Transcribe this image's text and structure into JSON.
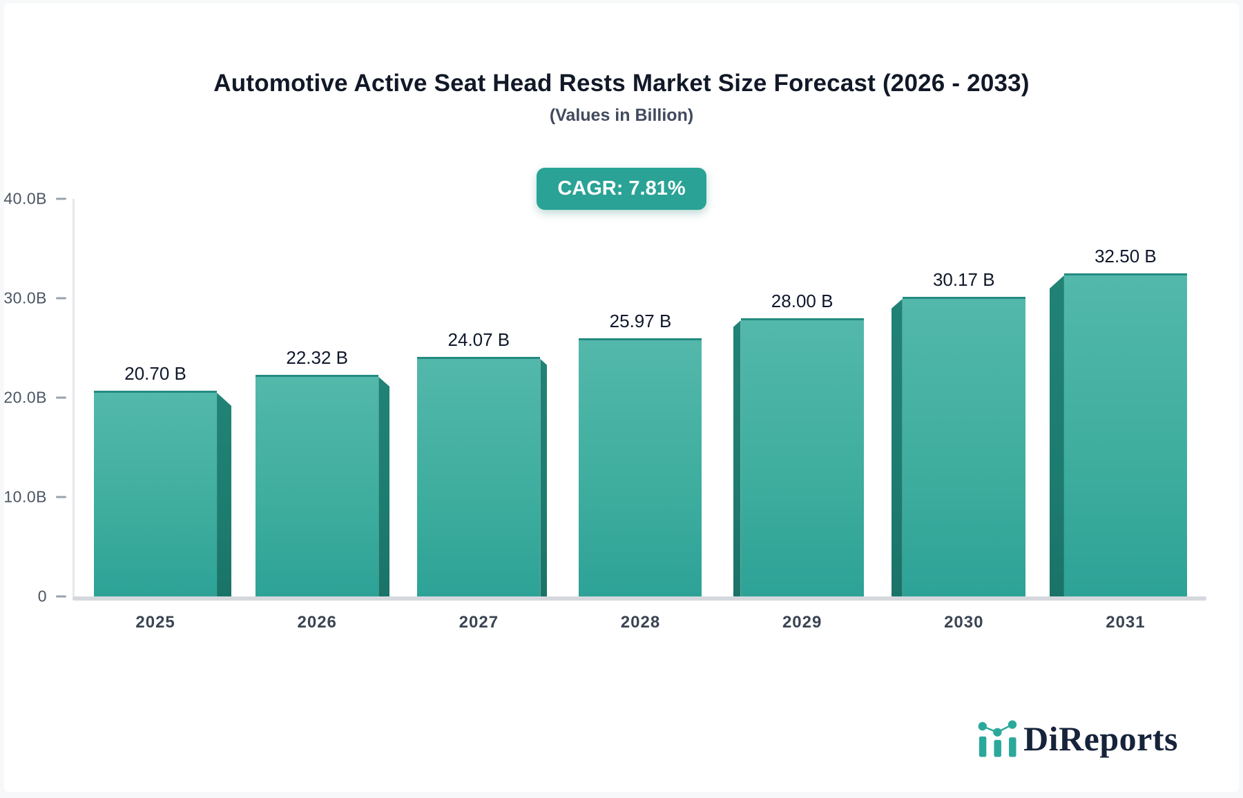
{
  "page": {
    "background": "#f7f8f9",
    "card_background": "#ffffff"
  },
  "header": {
    "title": "Automotive Active Seat Head Rests Market Size Forecast (2026 - 2033)",
    "subtitle": "(Values in Billion)"
  },
  "badge": {
    "label": "CAGR: 7.81%",
    "background": "#2aa396",
    "text_color": "#ffffff"
  },
  "chart_data": {
    "type": "bar",
    "title": "Automotive Active Seat Head Rests Market Size Forecast (2026 - 2033)",
    "subtitle": "(Values in Billion)",
    "unit": "Billion",
    "categories": [
      "2025",
      "2026",
      "2027",
      "2028",
      "2029",
      "2030",
      "2031"
    ],
    "values": [
      20.7,
      22.32,
      24.07,
      25.97,
      28.0,
      30.17,
      32.5
    ],
    "value_labels": [
      "20.70 B",
      "22.32 B",
      "24.07 B",
      "25.97 B",
      "28.00 B",
      "30.17 B",
      "32.50 B"
    ],
    "xlabel": "",
    "ylabel": "",
    "ylim": [
      0,
      40
    ],
    "yticks": [
      {
        "value": 0,
        "label": "0"
      },
      {
        "value": 10,
        "label": "10.0B"
      },
      {
        "value": 20,
        "label": "20.0B"
      },
      {
        "value": 30,
        "label": "30.0B"
      },
      {
        "value": 40,
        "label": "40.0B"
      }
    ],
    "grid": false,
    "legend": false,
    "style": "3d-center-perspective",
    "bar_face_top_color": "#53b8ab",
    "bar_face_bottom_color": "#2da296",
    "bar_side_color": "#1d7c70"
  },
  "footer": {
    "brand": "DiReports",
    "brand_color": "#16233b",
    "icon": "bar-line-chart-icon",
    "icon_color": "#2aa99b"
  }
}
